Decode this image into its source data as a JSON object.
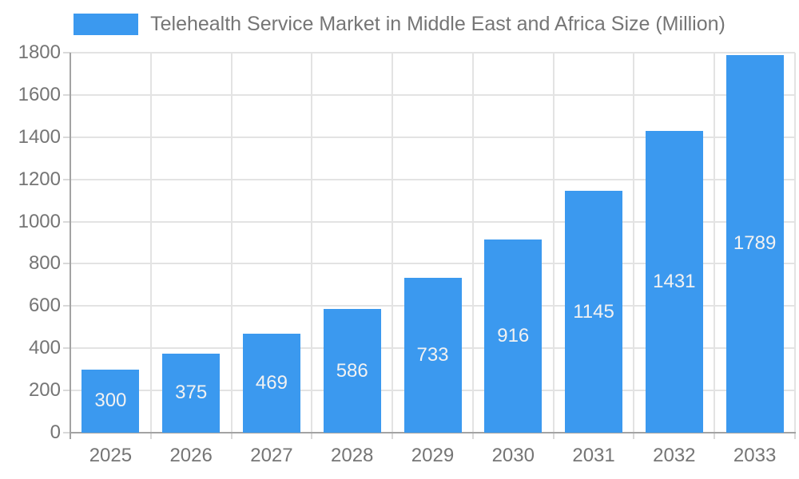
{
  "legend": {
    "label": "Telehealth Service Market in Middle East and Africa Size (Million)"
  },
  "chart_data": {
    "type": "bar",
    "title": "Telehealth Service Market in Middle East and Africa Size (Million)",
    "series_name": "Telehealth Service Market in Middle East and Africa Size (Million)",
    "categories": [
      "2025",
      "2026",
      "2027",
      "2028",
      "2029",
      "2030",
      "2031",
      "2032",
      "2033"
    ],
    "values": [
      300,
      375,
      469,
      586,
      733,
      916,
      1145,
      1431,
      1789
    ],
    "yticks": [
      0,
      200,
      400,
      600,
      800,
      1000,
      1200,
      1400,
      1600,
      1800
    ],
    "ylim": [
      0,
      1800
    ],
    "xlabel": "",
    "ylabel": "",
    "grid": true,
    "legend_position": "top",
    "value_label_position": "inside-center",
    "colors": {
      "bar": "#3b99ef",
      "grid": "#e3e3e3",
      "axis": "#a3a3a3",
      "tick": "#d9d9d9",
      "tick_label": "#757575",
      "value_label": "#f2f2f2"
    }
  }
}
